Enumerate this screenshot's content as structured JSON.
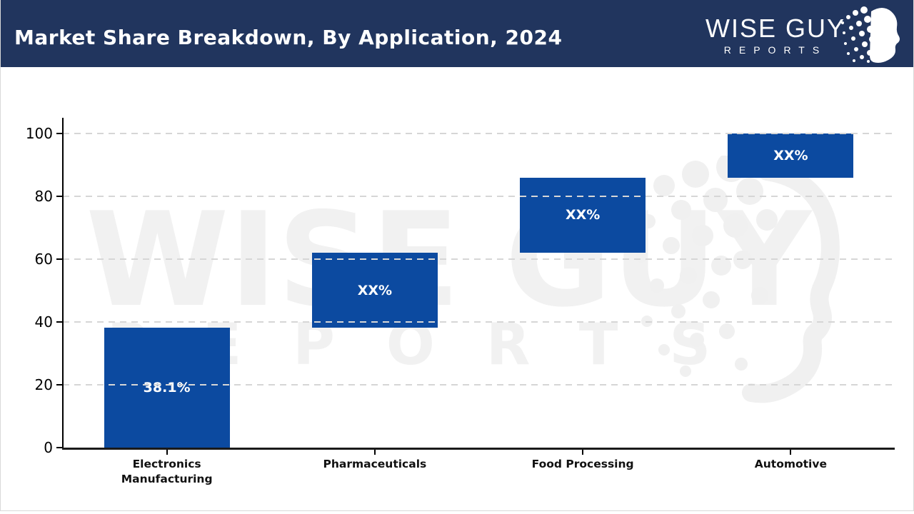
{
  "header": {
    "title": "Market Share Breakdown, By Application, 2024",
    "bg_color": "#21355e",
    "logo": {
      "name": "WISE GUY",
      "sub": "REPORTS"
    }
  },
  "watermark": {
    "line1": "WISE GUY",
    "line2": "REPORTS"
  },
  "chart_data": {
    "type": "bar",
    "subtype": "waterfall-floating-bars",
    "title": "Market Share Breakdown, By Application, 2024",
    "categories": [
      "Electronics Manufacturing",
      "Pharmaceuticals",
      "Food Processing",
      "Automotive"
    ],
    "segments": [
      {
        "category": "Electronics Manufacturing",
        "label": "38.1%",
        "start": 0,
        "end": 38.1
      },
      {
        "category": "Pharmaceuticals",
        "label": "XX%",
        "start": 38.1,
        "end": 62
      },
      {
        "category": "Food Processing",
        "label": "XX%",
        "start": 62,
        "end": 86
      },
      {
        "category": "Automotive",
        "label": "XX%",
        "start": 86,
        "end": 100
      }
    ],
    "yticks": [
      0,
      20,
      40,
      60,
      80,
      100
    ],
    "ylim": [
      0,
      100
    ],
    "xlabel": "",
    "ylabel": "",
    "bar_color": "#0c4aa0",
    "grid": "horizontal-dashed",
    "legend": "none"
  }
}
